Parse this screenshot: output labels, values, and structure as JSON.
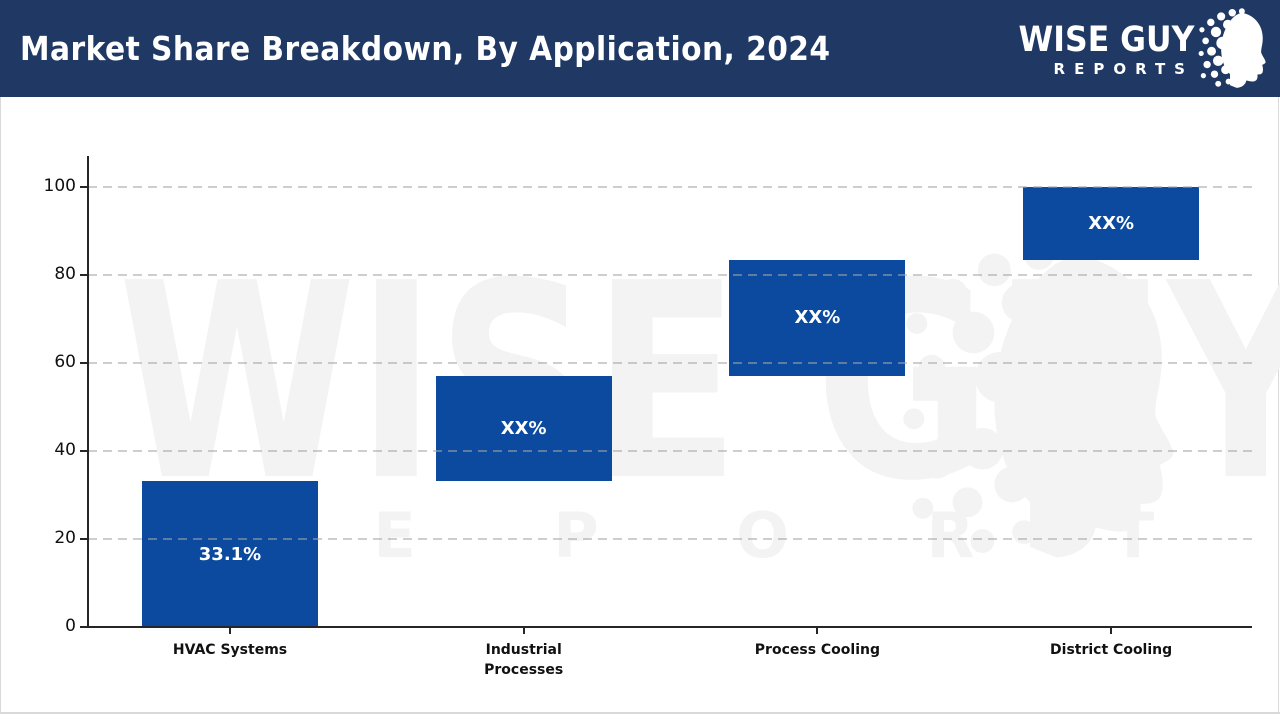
{
  "header": {
    "title": "Market Share Breakdown, By Application, 2024",
    "logo": {
      "brand_line1": "WISE GUY",
      "brand_line2": "REPORTS"
    }
  },
  "watermark": {
    "line1": "WISE GUY",
    "line2": "R E P O R T S"
  },
  "colors": {
    "header_bg": "#1f3864",
    "bar": "#0b4a9e",
    "axis": "#262626",
    "gridline": "rgba(165,165,165,0.55)",
    "watermark": "#f3f3f3",
    "bar_label_text": "#ffffff"
  },
  "chart_data": {
    "type": "bar",
    "subtype": "waterfall",
    "title": "Market Share Breakdown, By Application, 2024",
    "categories": [
      "HVAC Systems",
      "Industrial Processes",
      "Process Cooling",
      "District Cooling"
    ],
    "category_lines": [
      [
        "HVAC Systems"
      ],
      [
        "Industrial",
        "Processes"
      ],
      [
        "Process Cooling"
      ],
      [
        "District Cooling"
      ]
    ],
    "segments": [
      {
        "category": "HVAC Systems",
        "start": 0,
        "end": 33.1,
        "label": "33.1%"
      },
      {
        "category": "Industrial Processes",
        "start": 33.1,
        "end": 57,
        "label": "XX%"
      },
      {
        "category": "Process Cooling",
        "start": 57,
        "end": 83.5,
        "label": "XX%"
      },
      {
        "category": "District Cooling",
        "start": 83.5,
        "end": 100,
        "label": "XX%"
      }
    ],
    "y_ticks": [
      0,
      20,
      40,
      60,
      80,
      100
    ],
    "ylim": [
      0,
      107
    ],
    "xlabel": "",
    "ylabel": "",
    "legend": "none",
    "grid": "horizontal-dashed"
  }
}
